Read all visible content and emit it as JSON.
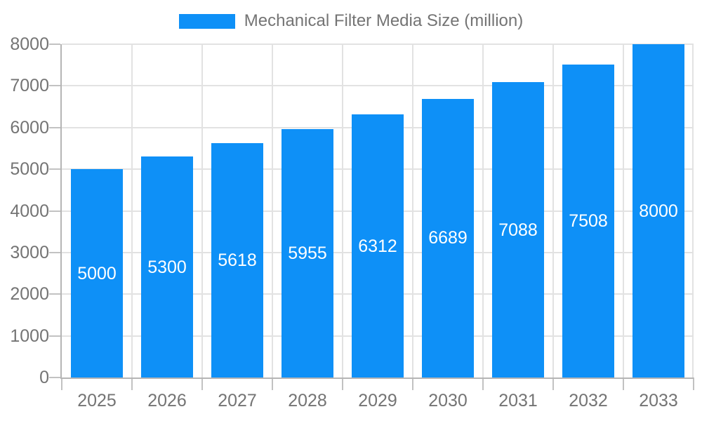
{
  "legend": {
    "label": "Mechanical Filter Media Size (million)"
  },
  "chart_data": {
    "type": "bar",
    "title": "",
    "xlabel": "",
    "ylabel": "",
    "series_name": "Mechanical Filter Media Size (million)",
    "categories": [
      "2025",
      "2026",
      "2027",
      "2028",
      "2029",
      "2030",
      "2031",
      "2032",
      "2033"
    ],
    "values": [
      5000,
      5300,
      5618,
      5955,
      6312,
      6689,
      7088,
      7508,
      8000
    ],
    "value_labels": [
      "5000",
      "5300",
      "5618",
      "5955",
      "6312",
      "6689",
      "7088",
      "7508",
      "8000"
    ],
    "ylim": [
      0,
      8000
    ],
    "ytick_step": 1000,
    "ytick_labels": [
      "0",
      "1000",
      "2000",
      "3000",
      "4000",
      "5000",
      "6000",
      "7000",
      "8000"
    ],
    "grid": true,
    "legend_position": "top",
    "bar_color": "#0e90f7",
    "value_label_color": "#ffffff",
    "tick_label_color": "#747474",
    "axis_color": "#b5b5b5",
    "tick_color": "#c2c2c2",
    "grid_color": "#e2e2e2"
  }
}
